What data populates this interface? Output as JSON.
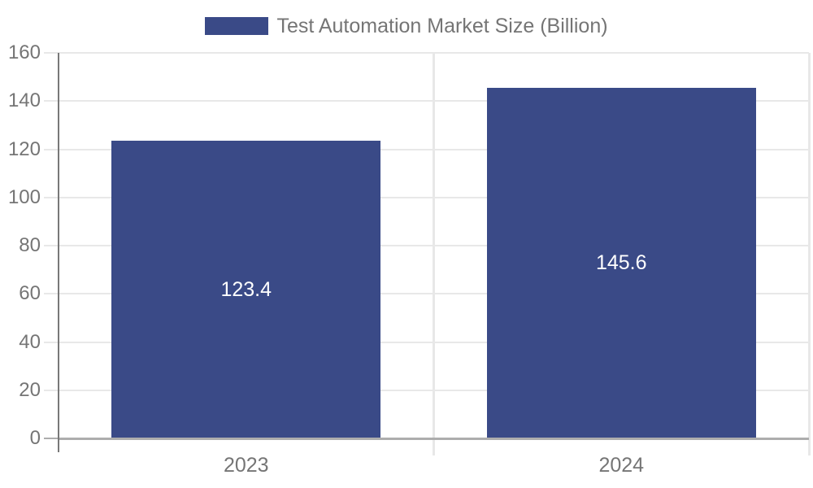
{
  "chart_data": {
    "type": "bar",
    "title": "Test Automation Market Size (Billion)",
    "legend": {
      "position": "top",
      "entries": [
        {
          "label": "Test Automation Market Size (Billion)",
          "color": "#3A4A87"
        }
      ]
    },
    "categories": [
      "2023",
      "2024"
    ],
    "series": [
      {
        "name": "Test Automation Market Size (Billion)",
        "values": [
          123.4,
          145.6
        ]
      }
    ],
    "value_labels": [
      "123.4",
      "145.6"
    ],
    "xlabel": "",
    "ylabel": "",
    "ylim": [
      0,
      160
    ],
    "yticks": [
      0,
      20,
      40,
      60,
      80,
      100,
      120,
      140,
      160
    ],
    "grid": true,
    "colors": {
      "bar": "#3A4A87",
      "value_label": "#FFFFFF",
      "text": "#757575",
      "gridline": "#E8E8E8",
      "baseline": "#ADADAD",
      "y_axis": "#787878",
      "background": "#FFFFFF"
    }
  }
}
